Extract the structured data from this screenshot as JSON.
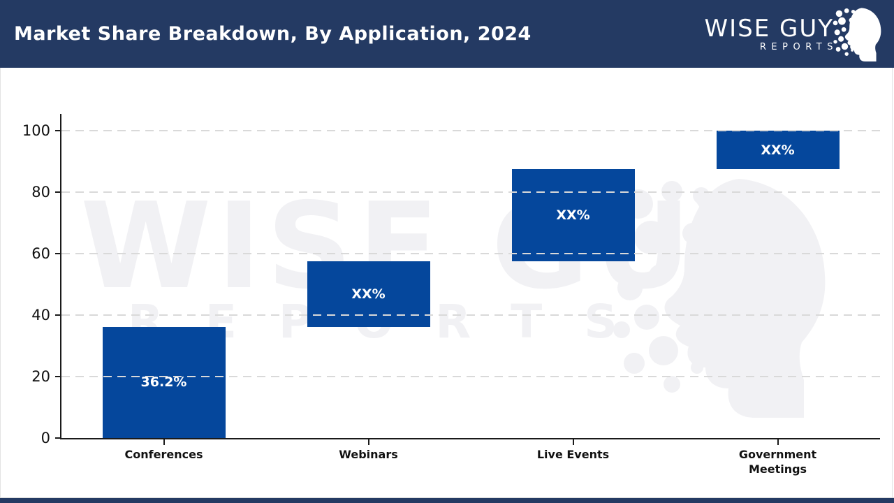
{
  "header": {
    "title": "Market Share Breakdown, By Application, 2024",
    "brand": {
      "line1": "WISE GUY",
      "line2": "REPORTS"
    }
  },
  "watermark": {
    "line1": "WISE GUY",
    "line2": "REPORTS"
  },
  "colors": {
    "header_bg": "#243a63",
    "footer_bg": "#243a63",
    "bar": "#05479c",
    "gridline": "#d9d9d9",
    "watermark": "#f1f1f4",
    "axis": "#1a1a1a",
    "bar_label": "#ffffff"
  },
  "chart_data": {
    "type": "bar",
    "subtype": "waterfall",
    "title": "Market Share Breakdown, By Application, 2024",
    "categories": [
      "Conferences",
      "Webinars",
      "Live Events",
      "Government Meetings"
    ],
    "segments": [
      {
        "category": "Conferences",
        "start": 0,
        "end": 36.2,
        "label": "36.2%"
      },
      {
        "category": "Webinars",
        "start": 36.2,
        "end": 57.5,
        "label": "XX%"
      },
      {
        "category": "Live Events",
        "start": 57.5,
        "end": 87.5,
        "label": "XX%"
      },
      {
        "category": "Government Meetings",
        "start": 87.5,
        "end": 100,
        "label": "XX%"
      }
    ],
    "xlabel": "",
    "ylabel": "",
    "ylim": [
      0,
      100
    ],
    "yticks": [
      0,
      20,
      40,
      60,
      80,
      100
    ],
    "grid": "dashed-horizontal-over-bars",
    "legend": "none"
  }
}
